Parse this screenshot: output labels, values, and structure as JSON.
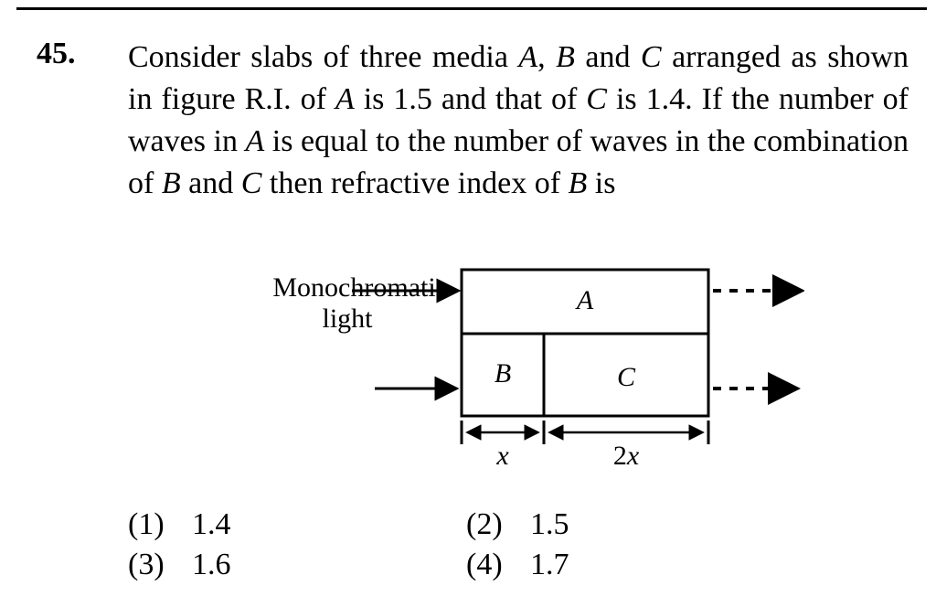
{
  "question": {
    "number": "45.",
    "stem_html": "Consider slabs of three media <span class=\"it\">A</span>, <span class=\"it\">B</span> and <span class=\"it\">C</span> arranged as shown in figure R.I. of <span class=\"it\">A</span> is 1.5 and that of <span class=\"it\">C</span> is 1.4. If the number of waves in <span class=\"it\">A</span> is equal to the number of waves in the combination of <span class=\"it\">B</span> and <span class=\"it\">C</span> then refractive index of <span class=\"it\">B</span> is"
  },
  "figure": {
    "mono_label_line1": "Monochromatic",
    "mono_label_line2": "light",
    "slab_A": "A",
    "slab_B": "B",
    "slab_C": "C",
    "dim_x": "x",
    "dim_2x": "2x",
    "colors": {
      "stroke": "#000000",
      "fill": "#ffffff"
    },
    "stroke_width": 3
  },
  "options": {
    "o1": {
      "num": "(1)",
      "val": "1.4"
    },
    "o2": {
      "num": "(2)",
      "val": "1.5"
    },
    "o3": {
      "num": "(3)",
      "val": "1.6"
    },
    "o4": {
      "num": "(4)",
      "val": "1.7"
    }
  }
}
